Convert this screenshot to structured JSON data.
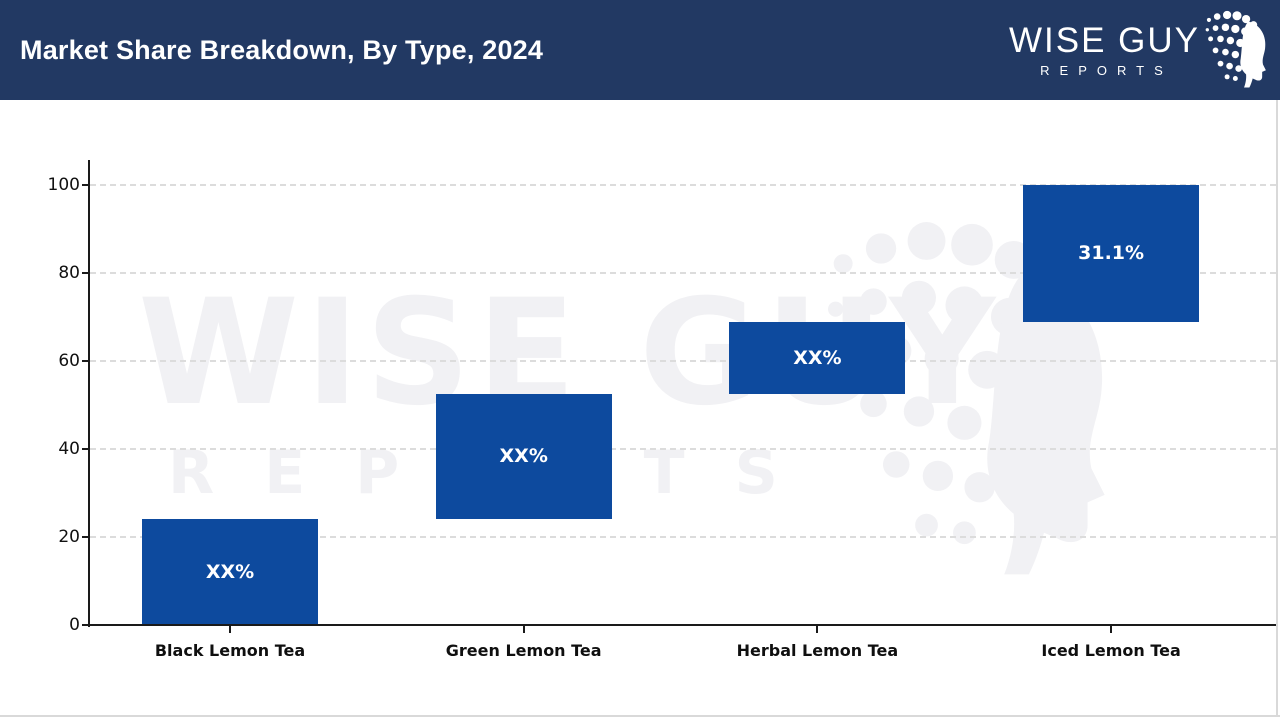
{
  "header": {
    "title": "Market Share Breakdown, By Type, 2024",
    "bg_color": "#223963",
    "logo": {
      "line1": "WISE GUY",
      "line2": "REPORTS"
    }
  },
  "watermark": {
    "line1": "WISE GUY",
    "line2": "REPORTS",
    "color": "#f1f1f4"
  },
  "chart_data": {
    "type": "bar",
    "subtype": "waterfall",
    "title": "Market Share Breakdown, By Type, 2024",
    "categories": [
      "Black Lemon Tea",
      "Green Lemon Tea",
      "Herbal Lemon Tea",
      "Iced Lemon Tea"
    ],
    "series": [
      {
        "name": "Market Share (%)",
        "segments": [
          {
            "start": 0,
            "end": 24.2
          },
          {
            "start": 24.2,
            "end": 52.4
          },
          {
            "start": 52.4,
            "end": 68.9
          },
          {
            "start": 68.9,
            "end": 100
          }
        ]
      }
    ],
    "values": [
      24.2,
      28.2,
      16.5,
      31.1
    ],
    "bar_labels": [
      "XX%",
      "XX%",
      "XX%",
      "31.1%"
    ],
    "xlabel": "",
    "ylabel": "",
    "ylim": [
      0,
      106
    ],
    "yticks": [
      0,
      20,
      40,
      60,
      80,
      100
    ],
    "grid": "horizontal dashed",
    "legend": "none",
    "bar_color": "#0d4a9e",
    "bar_label_color": "#ffffff",
    "axis_color": "#1a1a1a",
    "grid_color": "#dcdcdc"
  }
}
